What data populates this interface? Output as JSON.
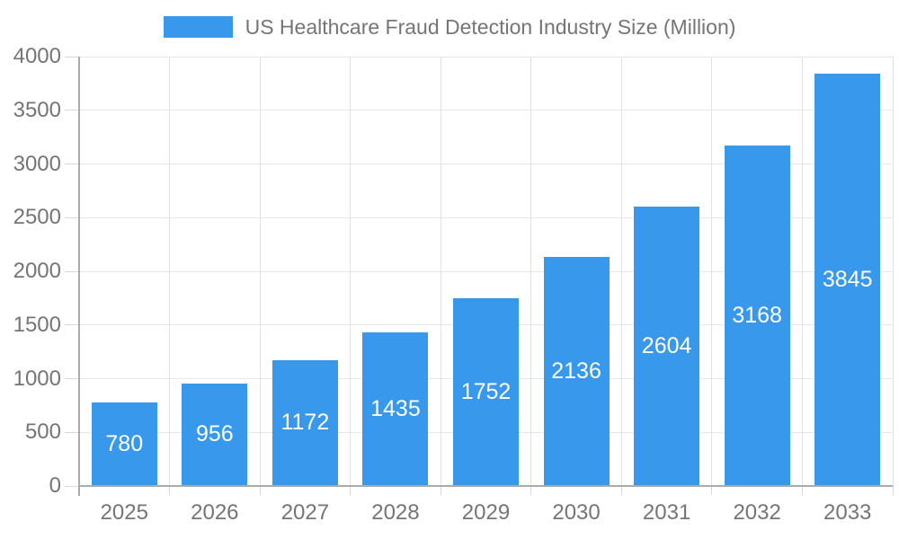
{
  "chart_data": {
    "type": "bar",
    "title": "US Healthcare Fraud Detection Industry Size (Million)",
    "categories": [
      "2025",
      "2026",
      "2027",
      "2028",
      "2029",
      "2030",
      "2031",
      "2032",
      "2033"
    ],
    "values": [
      780,
      956,
      1172,
      1435,
      1752,
      2136,
      2604,
      3168,
      3845
    ],
    "xlabel": "",
    "ylabel": "",
    "ylim": [
      0,
      4000
    ],
    "yticks": [
      0,
      500,
      1000,
      1500,
      2000,
      2500,
      3000,
      3500,
      4000
    ],
    "grid": true,
    "legend_position": "top-center",
    "bar_color": "#3898EC",
    "value_label_color": "#ffffff",
    "axis_text_color": "#757575",
    "gridline_color": "#e6e6e6",
    "axis_line_color": "#ababab"
  }
}
